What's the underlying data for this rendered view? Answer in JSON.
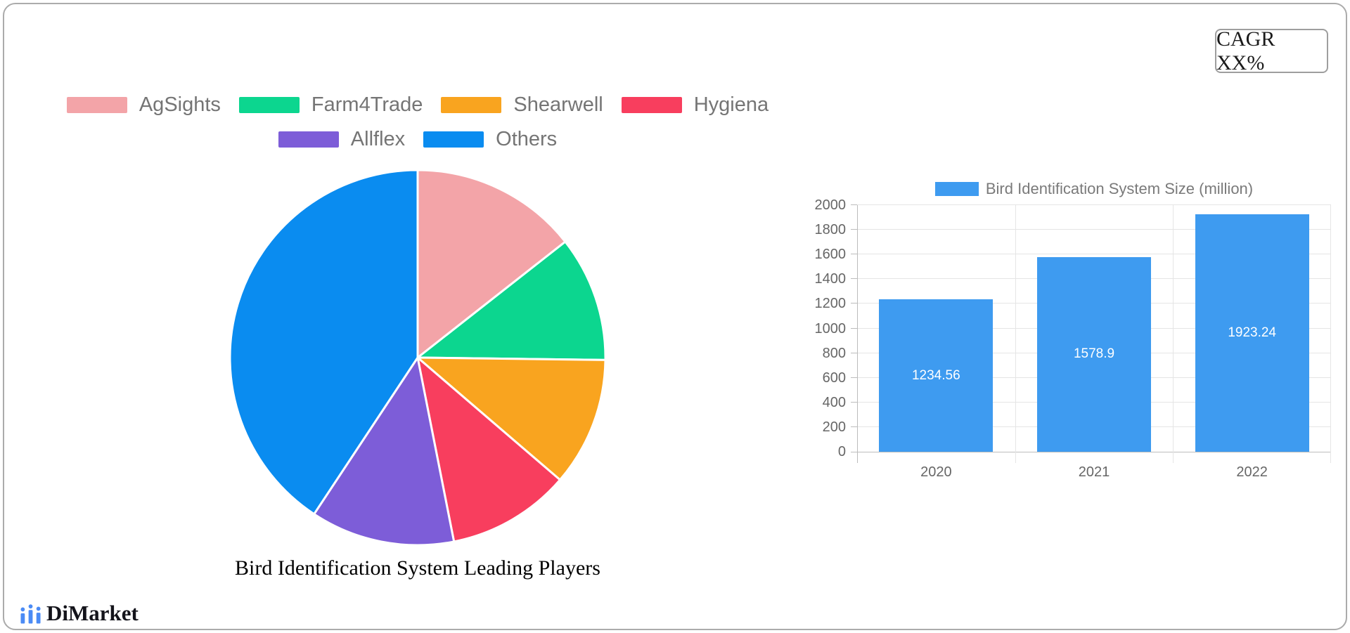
{
  "cagr_badge": {
    "label": "CAGR XX%"
  },
  "logo": {
    "text": "DiMarket",
    "icon": "bar-chart-icon",
    "icon_color": "#4b8bf5"
  },
  "chart_data": [
    {
      "type": "pie",
      "title": "Bird Identification System Leading Players",
      "legend_position": "top",
      "legend_rows": [
        [
          0,
          1,
          2,
          3
        ],
        [
          4,
          5
        ]
      ],
      "start_angle_deg": 0,
      "direction": "clockwise",
      "slices": [
        {
          "label": "AgSights",
          "percent": 14.4,
          "color": "#f3a4a8"
        },
        {
          "label": "Farm4Trade",
          "percent": 10.8,
          "color": "#0cd68f"
        },
        {
          "label": "Shearwell",
          "percent": 11.1,
          "color": "#f9a41f"
        },
        {
          "label": "Hygiena",
          "percent": 10.6,
          "color": "#f83e5e"
        },
        {
          "label": "Allflex",
          "percent": 12.4,
          "color": "#7d5dd8"
        },
        {
          "label": "Others",
          "percent": 40.7,
          "color": "#0a8cf0"
        }
      ]
    },
    {
      "type": "bar",
      "legend": "Bird Identification System Size (million)",
      "legend_position": "top",
      "categories": [
        "2020",
        "2021",
        "2022"
      ],
      "values": [
        1234.56,
        1578.9,
        1923.24
      ],
      "value_labels": [
        "1234.56",
        "1578.9",
        "1923.24"
      ],
      "bar_color": "#3e9bf0",
      "value_label_color": "#ffffff",
      "ylim": [
        0,
        2000
      ],
      "ytick_step": 200,
      "grid": true
    }
  ]
}
